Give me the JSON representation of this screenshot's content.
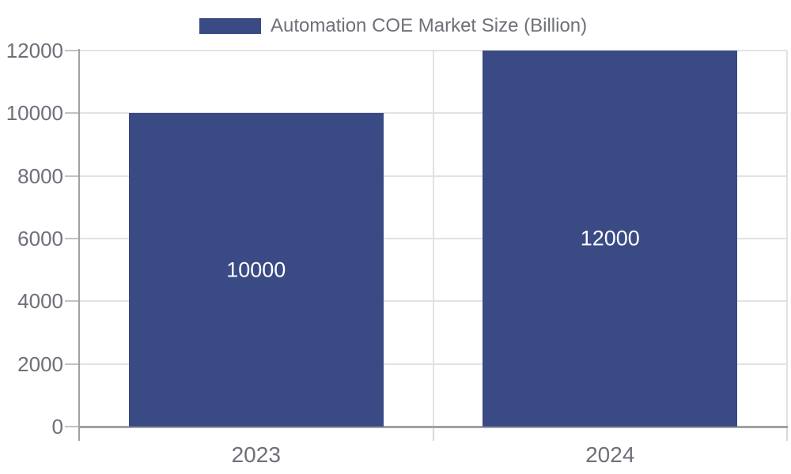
{
  "chart_data": {
    "type": "bar",
    "title": "",
    "categories": [
      "2023",
      "2024"
    ],
    "series": [
      {
        "name": "Automation COE Market Size (Billion)",
        "values": [
          10000,
          12000
        ]
      }
    ],
    "bar_value_labels": [
      "10000",
      "12000"
    ],
    "xlabel": "",
    "ylabel": "",
    "ylim": [
      0,
      12000
    ],
    "yticks": [
      0,
      2000,
      4000,
      6000,
      8000,
      10000,
      12000
    ],
    "ytick_labels": [
      "0",
      "2000",
      "4000",
      "6000",
      "8000",
      "10000",
      "12000"
    ],
    "grid": true,
    "legend_position": "top-center",
    "colors": {
      "bar": "#3A4A85",
      "bar_label_text": "#FFFFFF",
      "axis_line": "#A0A0A5",
      "tick_line": "#C2C2C6",
      "boundary_tick_line": "#D8D8DB",
      "grid_line": "#E2E2E6",
      "axis_label_text": "#6E7079",
      "legend_text": "#6E7079",
      "background": "#FFFFFF"
    }
  }
}
